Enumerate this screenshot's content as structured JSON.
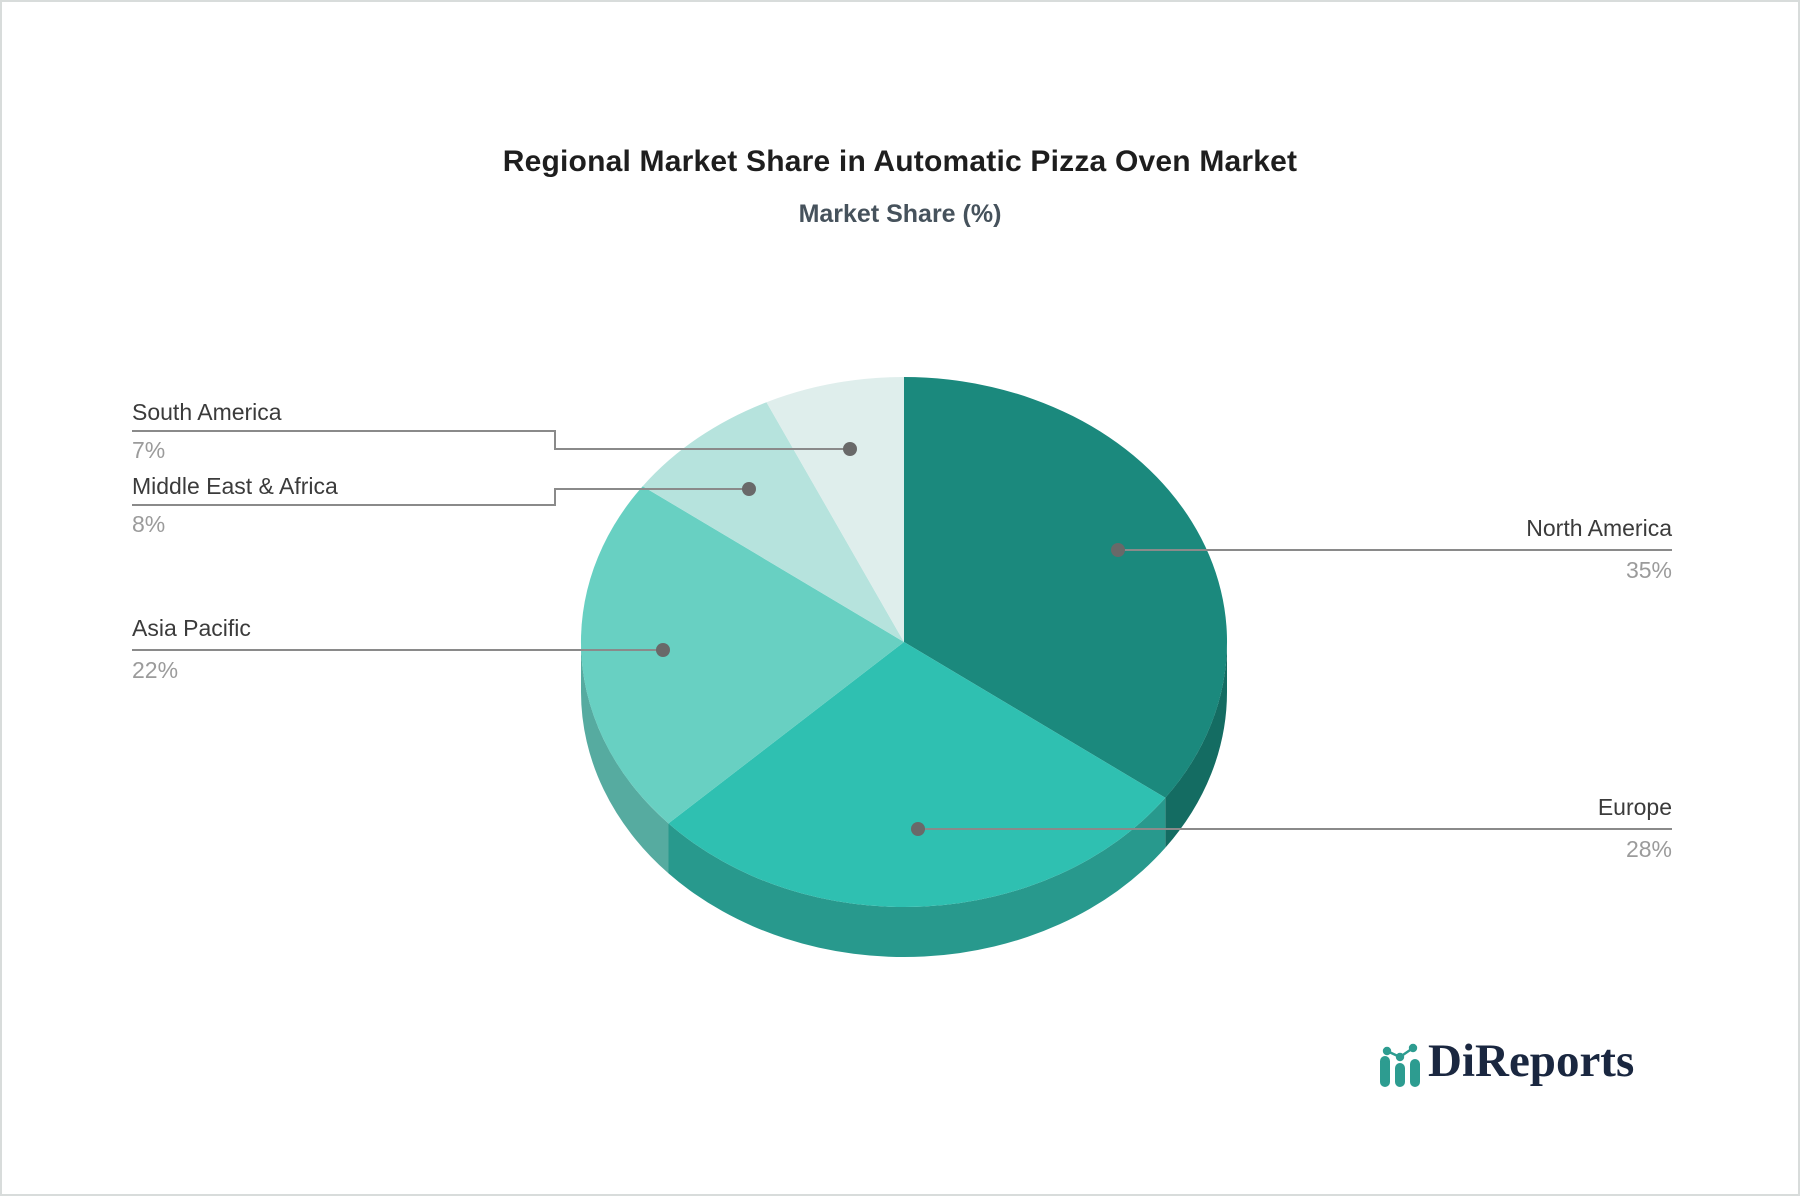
{
  "title": "Regional Market Share in Automatic Pizza Oven Market",
  "subtitle": "Market Share (%)",
  "logo": {
    "text": "DiReports"
  },
  "chart_data": {
    "type": "pie",
    "title": "Regional Market Share in Automatic Pizza Oven Market",
    "subtitle": "Market Share (%)",
    "unit": "%",
    "style": "3d-pie",
    "start_angle_deg": 0,
    "clockwise": true,
    "legend_position": "none",
    "background_color": "#ffffff",
    "leader_line_color": "#8a8a8a",
    "leader_dot_color": "#696969",
    "label_color": "#3b3b3b",
    "pct_color": "#9b9b9b",
    "slices": [
      {
        "label": "North America",
        "value": 35,
        "pct_label": "35%",
        "color": "#1b897d",
        "depth_color": "#146c62",
        "label_side": "right"
      },
      {
        "label": "Europe",
        "value": 28,
        "pct_label": "28%",
        "color": "#2fc0b1",
        "depth_color": "#28998d",
        "label_side": "right"
      },
      {
        "label": "Asia Pacific",
        "value": 22,
        "pct_label": "22%",
        "color": "#68d0c2",
        "depth_color": "#56aba0",
        "label_side": "left"
      },
      {
        "label": "Middle East & Africa",
        "value": 8,
        "pct_label": "8%",
        "color": "#b6e3dd",
        "depth_color": "#95bcb6",
        "label_side": "left-stepped"
      },
      {
        "label": "South America",
        "value": 7,
        "pct_label": "7%",
        "color": "#dfeeec",
        "depth_color": "#b8c9c6",
        "label_side": "left-stepped"
      }
    ]
  }
}
